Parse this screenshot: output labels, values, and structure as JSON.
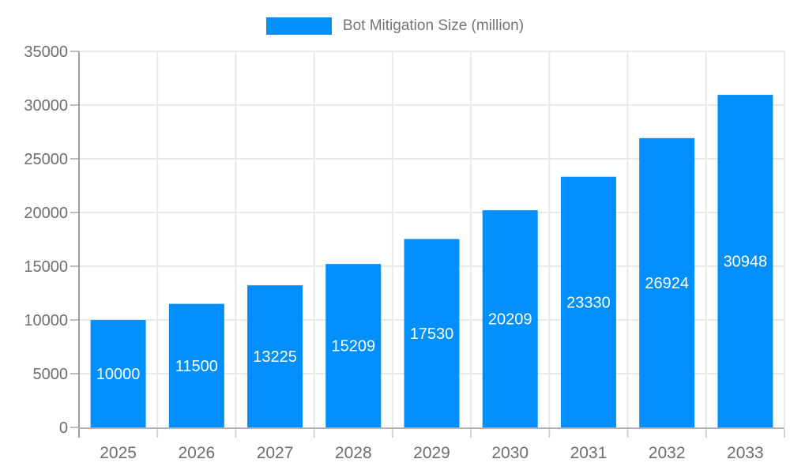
{
  "chart_data": {
    "type": "bar",
    "title": "Bot Mitigation Size (million)",
    "legend": [
      "Bot Mitigation Size (million)"
    ],
    "legend_position": "top",
    "categories": [
      "2025",
      "2026",
      "2027",
      "2028",
      "2029",
      "2030",
      "2031",
      "2032",
      "2033"
    ],
    "series": [
      {
        "name": "Bot Mitigation Size (million)",
        "values": [
          10000,
          11500,
          13225,
          15209,
          17530,
          20209,
          23330,
          26924,
          30948
        ]
      }
    ],
    "value_labels": [
      "10000",
      "11500",
      "13225",
      "15209",
      "17530",
      "20209",
      "23330",
      "26924",
      "30948"
    ],
    "xlabel": "",
    "ylabel": "",
    "ylim": [
      0,
      35000
    ],
    "ytick_step": 5000,
    "ytick_labels": [
      "0",
      "5000",
      "10000",
      "15000",
      "20000",
      "25000",
      "30000",
      "35000"
    ],
    "grid": true,
    "colors": {
      "bar": "#008ffb",
      "bar_value_label": "#ffffff",
      "axis_label": "#6e6e6e",
      "legend_label": "#757575",
      "gridline": "#e9e9e9",
      "tick": "#d2d2d2",
      "y_axis_line": "#9e9e9e",
      "x_axis_line": "#b3b3b3",
      "background": "#ffffff"
    }
  }
}
